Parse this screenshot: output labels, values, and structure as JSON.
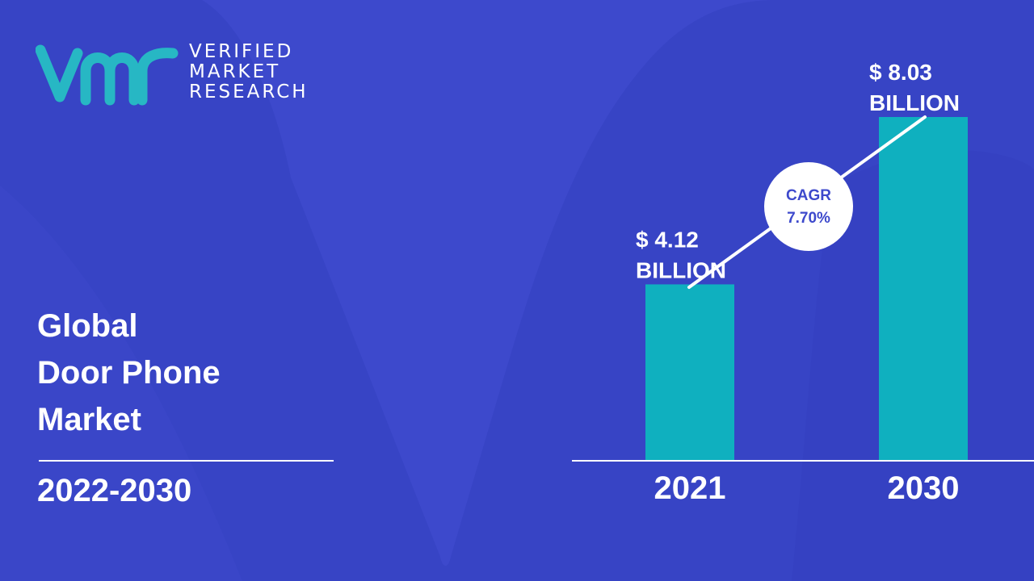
{
  "brand": {
    "lines": [
      "VERIFIED",
      "MARKET",
      "RESEARCH"
    ],
    "colors": {
      "teal": "#27b7c4",
      "white": "#ffffff"
    }
  },
  "report": {
    "title_lines": [
      "Global",
      "Door Phone",
      "Market"
    ],
    "period": "2022-2030"
  },
  "chart_data": {
    "type": "bar",
    "categories": [
      "2021",
      "2030"
    ],
    "values": [
      4.12,
      8.03
    ],
    "value_labels": [
      [
        "$ 4.12",
        "BILLION"
      ],
      [
        "$ 8.03",
        "BILLION"
      ]
    ],
    "cagr_label": "CAGR",
    "cagr_value": "7.70%",
    "ylim": [
      0,
      8.03
    ],
    "bar_color": "#0fb0bf",
    "background_color": "#3d49cc",
    "grid": false
  }
}
